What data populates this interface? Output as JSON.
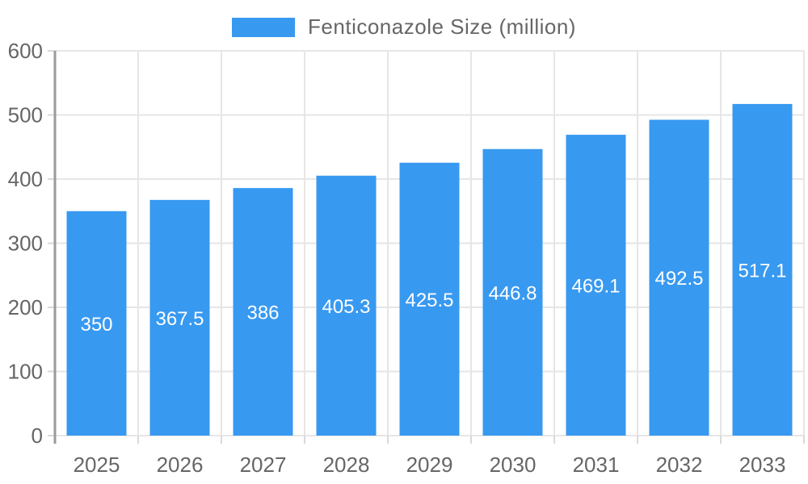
{
  "legend": {
    "label": "Fenticonazole Size (million)",
    "swatch_color": "#3899F0"
  },
  "chart_data": {
    "type": "bar",
    "title": "Fenticonazole Size (million)",
    "categories": [
      "2025",
      "2026",
      "2027",
      "2028",
      "2029",
      "2030",
      "2031",
      "2032",
      "2033"
    ],
    "values": [
      350,
      367.5,
      386,
      405.3,
      425.5,
      446.8,
      469.1,
      492.5,
      517.1
    ],
    "value_labels": [
      "350",
      "367.5",
      "386",
      "405.3",
      "425.5",
      "446.8",
      "469.1",
      "492.5",
      "517.1"
    ],
    "xlabel": "",
    "ylabel": "",
    "ylim": [
      0,
      600
    ],
    "yticks": [
      0,
      100,
      200,
      300,
      400,
      500,
      600
    ],
    "legend_position": "top",
    "grid": true,
    "colors": {
      "bar": "#3899F0",
      "grid": "#e6e6e6",
      "tick": "#d9d9d9",
      "axis_line": "#9a9a9a",
      "axis_text": "#666666",
      "bar_label_text": "#ffffff",
      "background": "#ffffff"
    }
  }
}
